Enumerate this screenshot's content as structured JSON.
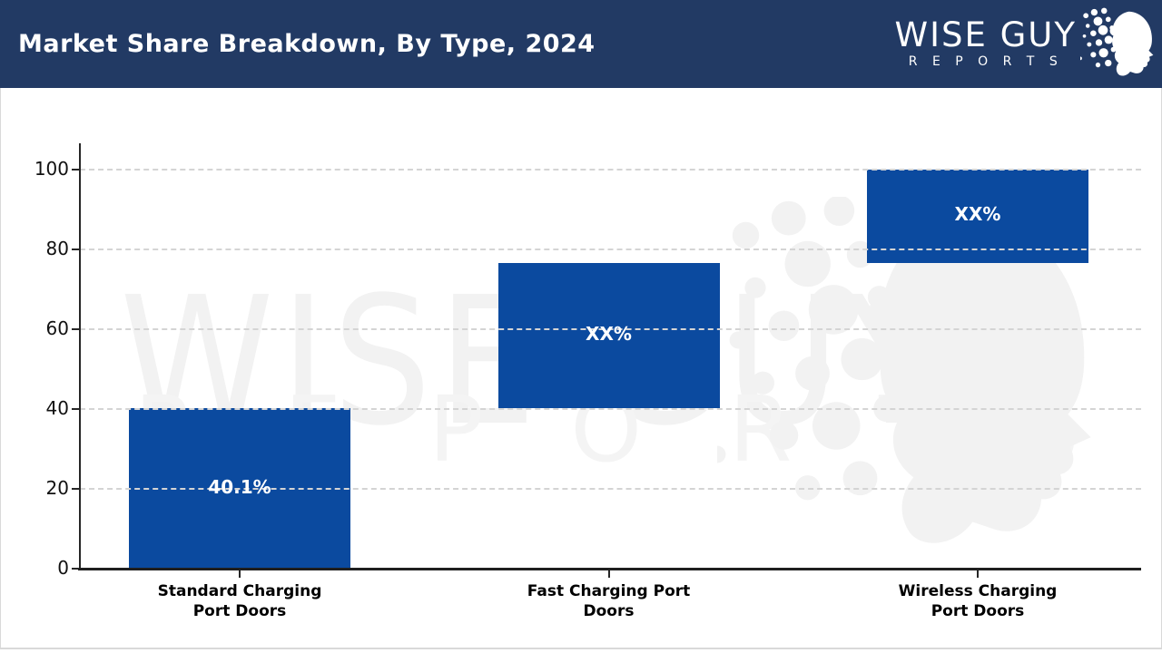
{
  "header": {
    "title": "Market Share Breakdown, By Type, 2024",
    "logo": {
      "line1": "WISE GUY",
      "line2": "R E P O R T S"
    }
  },
  "watermark": {
    "line1": "WISE GUY",
    "line2": "R E P O R T S"
  },
  "chart_data": {
    "type": "bar",
    "subtype": "waterfall",
    "title": "Market Share Breakdown, By Type, 2024",
    "categories": [
      "Standard Charging\nPort Doors",
      "Fast Charging Port\nDoors",
      "Wireless Charging\nPort Doors"
    ],
    "segments": [
      {
        "category": "Standard Charging Port Doors",
        "start": 0,
        "end": 40.1,
        "value": 40.1,
        "label": "40.1%"
      },
      {
        "category": "Fast Charging Port Doors",
        "start": 40.1,
        "end": 76.5,
        "value": 36.4,
        "label": "XX%"
      },
      {
        "category": "Wireless Charging Port Doors",
        "start": 76.5,
        "end": 100,
        "value": 23.5,
        "label": "XX%"
      }
    ],
    "xlabel": "",
    "ylabel": "",
    "ylim": [
      0,
      100
    ],
    "yticks": [
      0,
      20,
      40,
      60,
      80,
      100
    ],
    "grid": "horizontal-dashed",
    "legend": "none",
    "bar_color": "#0b4a9f",
    "bar_label_color": "#ffffff",
    "axis_color": "#262626",
    "grid_color": "#d4d4d4"
  },
  "colors": {
    "header_bg": "#223a64",
    "header_text": "#ffffff",
    "watermark": "#f2f2f2"
  }
}
